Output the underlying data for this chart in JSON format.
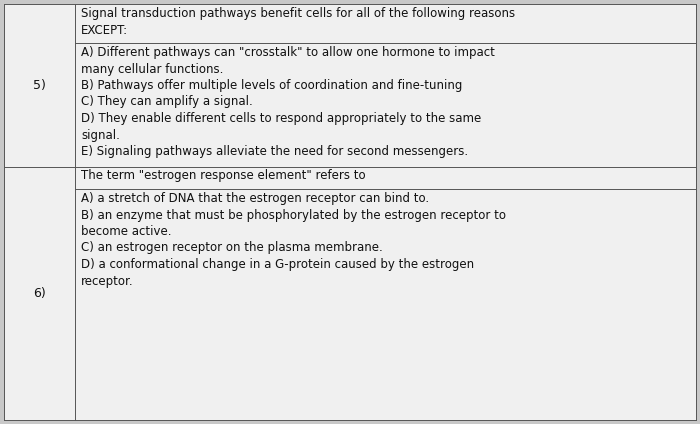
{
  "background_color": "#c8c8c8",
  "table_bg": "#f0f0f0",
  "line_color": "#555555",
  "text_color": "#111111",
  "font_size": 8.5,
  "rows": [
    {
      "number": "5)",
      "question_lines": [
        "Signal transduction pathways benefit cells for all of the following reasons",
        "EXCEPT:"
      ],
      "answers": [
        "A) Different pathways can \"crosstalk\" to allow one hormone to impact\nmany cellular functions.",
        "B) Pathways offer multiple levels of coordination and fine-tuning",
        "C) They can amplify a signal.",
        "D) They enable different cells to respond appropriately to the same\nsignal.",
        "E) Signaling pathways alleviate the need for second messengers."
      ]
    },
    {
      "number": "6)",
      "question_lines": [
        "The term \"estrogen response element\" refers to"
      ],
      "answers": [
        "A) a stretch of DNA that the estrogen receptor can bind to.",
        "B) an enzyme that must be phosphorylated by the estrogen receptor to\nbecome active.",
        "C) an estrogen receptor on the plasma membrane.",
        "D) a conformational change in a G-protein caused by the estrogen\nreceptor."
      ]
    }
  ]
}
